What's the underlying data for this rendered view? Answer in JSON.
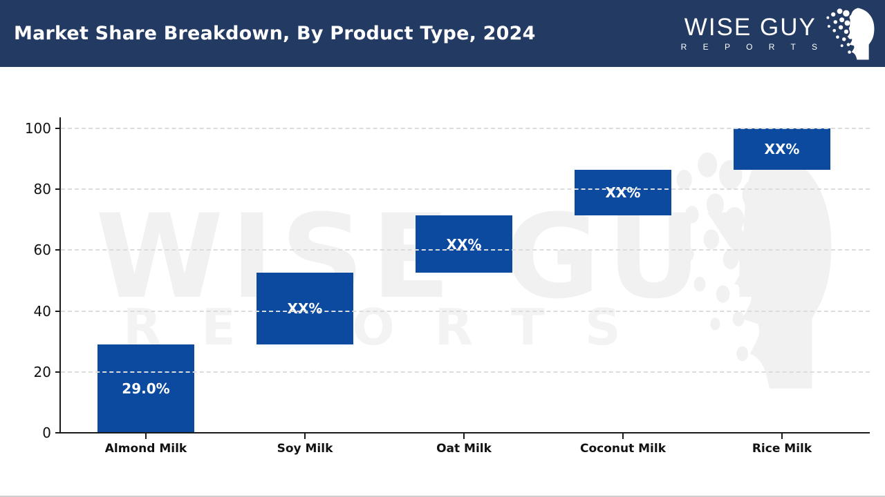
{
  "header": {
    "title": "Market Share Breakdown, By Product Type, 2024",
    "logo": {
      "line1": "WISE GUY",
      "line2": "R E P O R T S"
    }
  },
  "watermark": {
    "line1": "WISE GUY",
    "line2": "REPORTS"
  },
  "chart_data": {
    "type": "bar",
    "subtype": "waterfall",
    "title": "Market Share Breakdown, By Product Type, 2024",
    "xlabel": "",
    "ylabel": "",
    "categories": [
      "Almond Milk",
      "Soy Milk",
      "Oat Milk",
      "Coconut Milk",
      "Rice Milk"
    ],
    "segments": [
      {
        "category": "Almond Milk",
        "start": 0,
        "end": 29,
        "label": "29.0%"
      },
      {
        "category": "Soy Milk",
        "start": 29,
        "end": 52.5,
        "label": "XX%"
      },
      {
        "category": "Oat Milk",
        "start": 52.5,
        "end": 71.5,
        "label": "XX%"
      },
      {
        "category": "Coconut Milk",
        "start": 71.5,
        "end": 86.5,
        "label": "XX%"
      },
      {
        "category": "Rice Milk",
        "start": 86.5,
        "end": 100,
        "label": "XX%"
      }
    ],
    "y_ticks": [
      0,
      20,
      40,
      60,
      80,
      100
    ],
    "ylim": [
      0,
      104
    ],
    "grid": "dashed-horizontal",
    "legend": "none",
    "bar_color": "#0C4AA0",
    "bar_label_color": "#FFFFFF"
  },
  "colors": {
    "header_bg": "#233A63",
    "bar": "#0C4AA0",
    "grid": "#DCDCDC",
    "axis": "#1A1A1A",
    "watermark": "#F1F1F1"
  }
}
